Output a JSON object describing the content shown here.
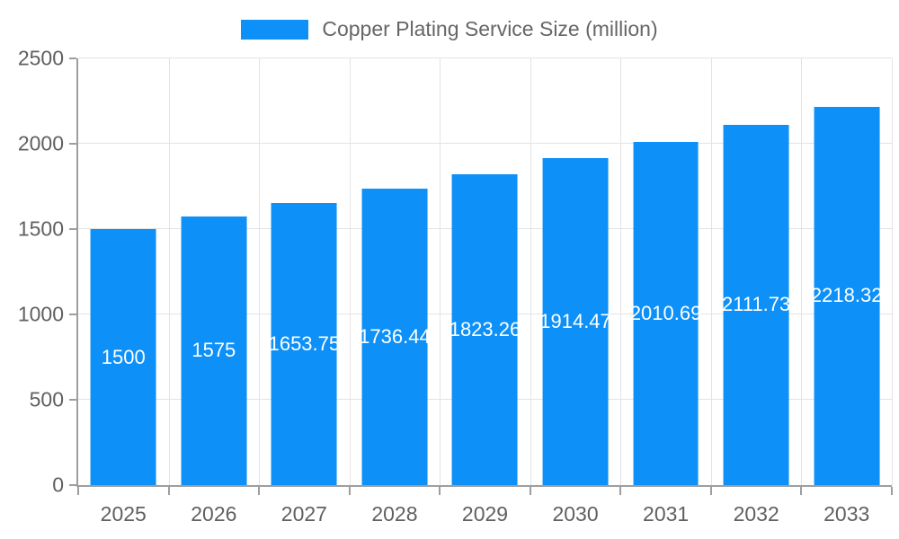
{
  "legend": {
    "label": "Copper Plating Service Size (million)"
  },
  "colors": {
    "accent": "#0d90f7",
    "grid": "#e3e3e3",
    "axis": "#9e9e9e",
    "tick_text": "#606060",
    "legend_text": "#666666",
    "bar_label_text": "#ffffff"
  },
  "chart_data": {
    "type": "bar",
    "title": "Copper Plating Service Size (million)",
    "categories": [
      "2025",
      "2026",
      "2027",
      "2028",
      "2029",
      "2030",
      "2031",
      "2032",
      "2033"
    ],
    "values": [
      1500,
      1575,
      1653.75,
      1736.44,
      1823.26,
      1914.47,
      2010.69,
      2111.73,
      2218.32
    ],
    "value_labels": [
      "1500",
      "1575",
      "1653.75",
      "1736.44",
      "1823.26",
      "1914.47",
      "2010.69",
      "2111.73",
      "2218.32"
    ],
    "xlabel": "",
    "ylabel": "",
    "ylim": [
      0,
      2500
    ],
    "yticks": [
      0,
      500,
      1000,
      1500,
      2000,
      2500
    ],
    "grid": true,
    "legend_position": "top",
    "bar_color": "#0d90f7",
    "label_color": "#ffffff",
    "label_position": "middle"
  }
}
